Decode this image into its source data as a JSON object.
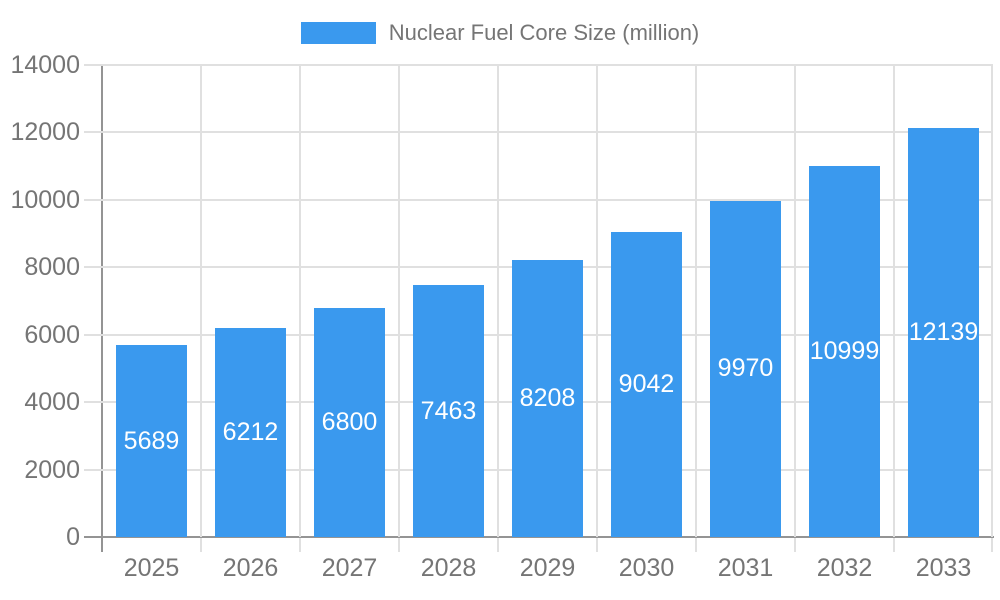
{
  "legend": {
    "label": "Nuclear Fuel Core Size (million)"
  },
  "chart_data": {
    "type": "bar",
    "title": "Nuclear Fuel Core Size (million)",
    "series": [
      {
        "name": "Nuclear Fuel Core Size (million)",
        "values": [
          5689,
          6212,
          6800,
          7463,
          8208,
          9042,
          9970,
          10999,
          12139
        ]
      }
    ],
    "categories": [
      "2025",
      "2026",
      "2027",
      "2028",
      "2029",
      "2030",
      "2031",
      "2032",
      "2033"
    ],
    "values": [
      5689,
      6212,
      6800,
      7463,
      8208,
      9042,
      9970,
      10999,
      12139
    ],
    "xlabel": "",
    "ylabel": "",
    "ylim": [
      0,
      14000
    ],
    "yticks": [
      0,
      2000,
      4000,
      6000,
      8000,
      10000,
      12000,
      14000
    ],
    "grid": true,
    "legend_position": "top",
    "value_labels": "inside-center",
    "colors": {
      "bar": "#3a99ee",
      "value_label": "#ffffff",
      "axis_text": "#757575",
      "axis_line": "#949494",
      "gridline": "#e0e0e0",
      "background": "#ffffff"
    }
  }
}
